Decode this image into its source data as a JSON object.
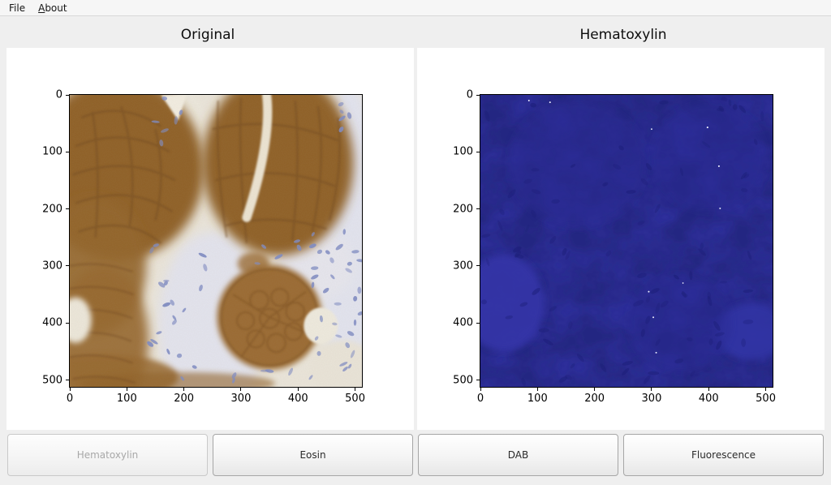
{
  "menu": {
    "file_label": "File",
    "about_first": "A",
    "about_rest": "bout"
  },
  "panels": [
    {
      "title": "Original",
      "x_ticks": [
        0,
        100,
        200,
        300,
        400,
        500
      ],
      "y_ticks": [
        0,
        100,
        200,
        300,
        400,
        500
      ],
      "axis_limit": 512,
      "image_description": "IHC histology tile: brown DAB-stained glands, pale stroma, blue hematoxylin nuclei"
    },
    {
      "title": "Hematoxylin",
      "x_ticks": [
        0,
        100,
        200,
        300,
        400,
        500
      ],
      "y_ticks": [
        0,
        100,
        200,
        300,
        400,
        500
      ],
      "axis_limit": 512,
      "image_description": "Hematoxylin deconvolution channel: uniform deep blue with darker tissue texture"
    }
  ],
  "buttons": [
    {
      "label": "Hematoxylin",
      "disabled": true
    },
    {
      "label": "Eosin",
      "disabled": false
    },
    {
      "label": "DAB",
      "disabled": false
    },
    {
      "label": "Fluorescence",
      "disabled": false
    }
  ],
  "colors": {
    "window_bg": "#efefef",
    "panel_bg": "#ffffff",
    "hematoxylin_blue": "#2f30a0",
    "dab_brown": "#96672e",
    "disabled_text": "#a8a8a8"
  }
}
